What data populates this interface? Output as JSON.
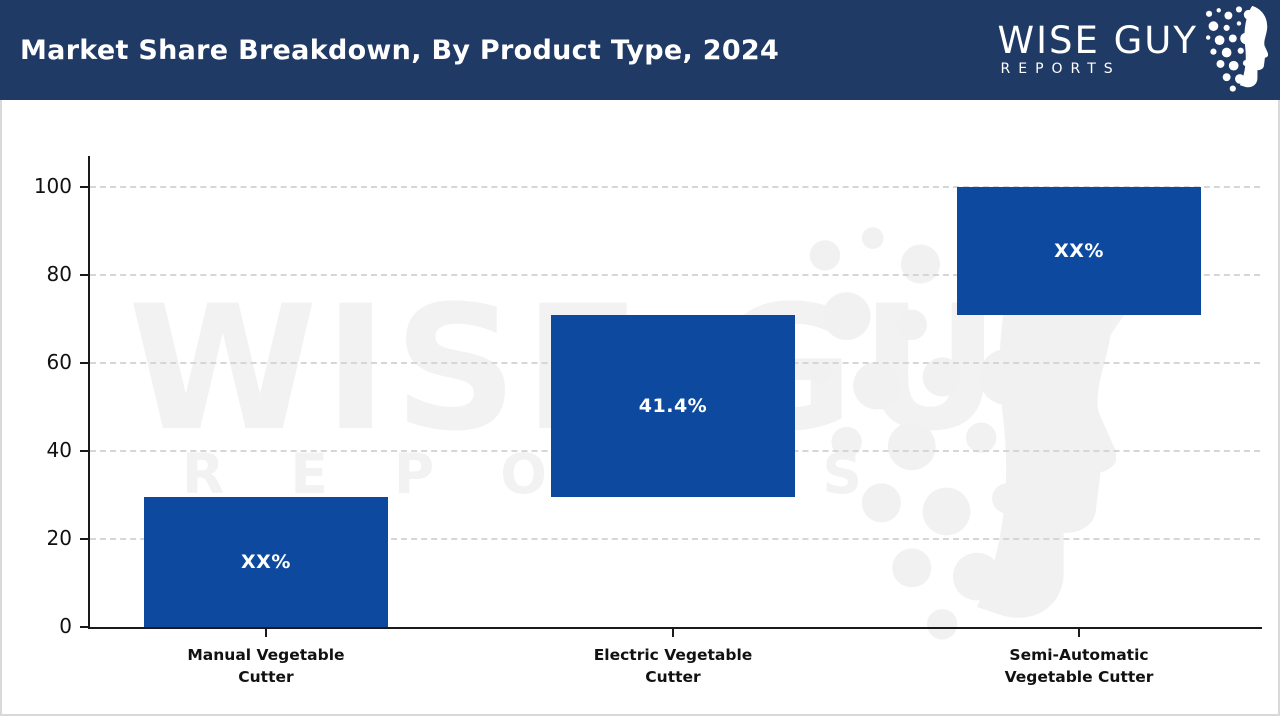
{
  "header": {
    "title": "Market Share Breakdown, By Product Type, 2024",
    "logo": {
      "name_line": "WISE GUY",
      "sub_line": "REPORTS"
    }
  },
  "watermark": {
    "name_line": "WISE GUY",
    "sub_line": "REPORTS"
  },
  "chart_data": {
    "type": "bar",
    "subtype": "stacked-waterfall-breakdown",
    "title": "",
    "xlabel": "",
    "ylabel": "",
    "categories": [
      "Manual Vegetable\nCutter",
      "Electric Vegetable\nCutter",
      "Semi-Automatic\nVegetable Cutter"
    ],
    "series": [
      {
        "name": "Manual Vegetable Cutter",
        "start": 0,
        "end": 29.5,
        "label": "XX%"
      },
      {
        "name": "Electric Vegetable Cutter",
        "start": 29.5,
        "end": 70.9,
        "label": "41.4%"
      },
      {
        "name": "Semi-Automatic Vegetable Cutter",
        "start": 70.9,
        "end": 100,
        "label": "XX%"
      }
    ],
    "yticks": [
      0,
      20,
      40,
      60,
      80,
      100
    ],
    "ylim": [
      0,
      107
    ],
    "grid": "horizontal-dashed",
    "legend": null,
    "colors": {
      "bar": "#0d4a9f",
      "bar_label": "#ffffff",
      "grid": "#d6d6d6",
      "axis": "#1a1a1a",
      "tick_label": "#111111",
      "header_bg": "#203a66",
      "header_text": "#ffffff",
      "watermark": "#f2f2f2"
    }
  }
}
